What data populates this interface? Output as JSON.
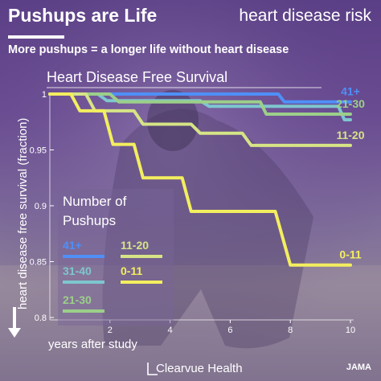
{
  "header": {
    "title": "Pushups are Life",
    "topic": "heart disease risk",
    "subtitle": "More pushups = a longer life without heart disease"
  },
  "footer": {
    "brand": "Clearvue Health",
    "source": "JAMA"
  },
  "colors": {
    "41+": "#4f8ff7",
    "31-40": "#7ec6cf",
    "21-30": "#9ccf8a",
    "11-20": "#d6e486",
    "0-11": "#f3ee5f"
  },
  "chart_data": {
    "type": "line",
    "title": "Heart Disease Free Survival",
    "xlabel": "years after study",
    "ylabel": "heart disease free survival (fraction)",
    "xlim": [
      0,
      10
    ],
    "ylim": [
      0.8,
      1.0
    ],
    "xticks": [
      2,
      4,
      6,
      8,
      10
    ],
    "yticks": [
      {
        "v": 1.0,
        "label": "1"
      },
      {
        "v": 0.95,
        "label": "0.95"
      },
      {
        "v": 0.9,
        "label": "0.9"
      },
      {
        "v": 0.85,
        "label": "0.85"
      },
      {
        "v": 0.8,
        "label": "0.8"
      }
    ],
    "legend_title": "Number of Pushups",
    "legend_placement": "bottom-left",
    "series": [
      {
        "name": "41+",
        "end_label": "41+",
        "x": [
          0,
          7.6,
          7.8,
          10
        ],
        "y": [
          1.0,
          1.0,
          0.993,
          0.993
        ]
      },
      {
        "name": "31-40",
        "end_label": "",
        "x": [
          0,
          1.6,
          1.9,
          5.0,
          5.3,
          9.6,
          9.8,
          10
        ],
        "y": [
          1.0,
          1.0,
          0.994,
          0.994,
          0.989,
          0.989,
          0.977,
          0.977
        ]
      },
      {
        "name": "21-30",
        "end_label": "21-30",
        "x": [
          0,
          2.0,
          2.3,
          7.0,
          7.2,
          10
        ],
        "y": [
          1.0,
          1.0,
          0.993,
          0.993,
          0.982,
          0.982
        ]
      },
      {
        "name": "11-20",
        "end_label": "11-20",
        "x": [
          0,
          1.2,
          1.5,
          2.8,
          3.1,
          4.7,
          5.0,
          6.4,
          6.7,
          10
        ],
        "y": [
          1.0,
          1.0,
          0.985,
          0.985,
          0.973,
          0.973,
          0.965,
          0.965,
          0.954,
          0.954
        ]
      },
      {
        "name": "0-11",
        "end_label": "0-11",
        "x": [
          0,
          0.7,
          1.0,
          1.8,
          2.1,
          2.8,
          3.1,
          4.4,
          4.7,
          7.5,
          8.0,
          10
        ],
        "y": [
          1.0,
          1.0,
          0.985,
          0.985,
          0.955,
          0.955,
          0.925,
          0.925,
          0.895,
          0.895,
          0.847,
          0.847
        ]
      }
    ]
  }
}
